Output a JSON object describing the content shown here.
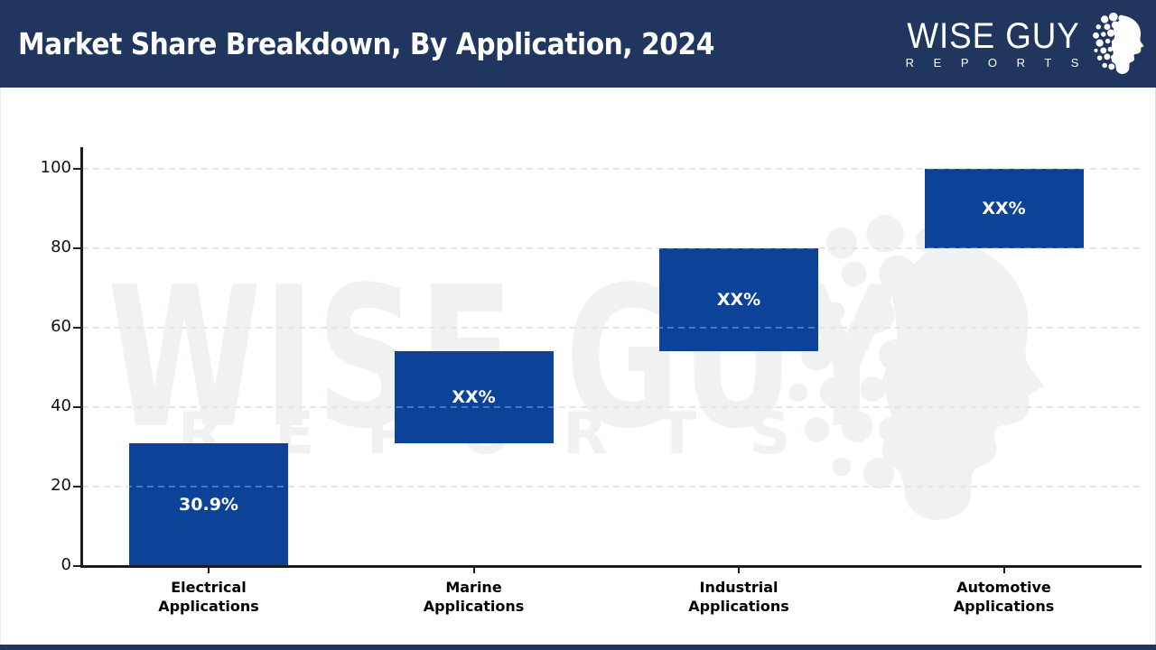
{
  "header": {
    "title": "Market Share Breakdown, By Application, 2024",
    "logo": {
      "brand": "WISE GUY",
      "brand_sub": "R E P O R T S"
    }
  },
  "watermark": {
    "brand": "WISE GUY",
    "brand_sub": "REPORTS"
  },
  "colors": {
    "header_bg": "#20365e",
    "footer_bg": "#20365e",
    "bar_fill": "#0c4399",
    "bar_label_text": "#ffffff",
    "title_text": "#ffffff",
    "axis_line": "#1c1c1c",
    "tick_label_text": "#111111",
    "gridline": "#dedede",
    "canvas_bg": "#ffffff",
    "watermark_tint": "#f0f1f3"
  },
  "chart_data": {
    "type": "bar",
    "subtype": "waterfall",
    "title": "Market Share Breakdown, By Application, 2024",
    "categories": [
      "Electrical Applications",
      "Marine Applications",
      "Industrial Applications",
      "Automotive Applications"
    ],
    "category_lines": [
      [
        "Electrical",
        "Applications"
      ],
      [
        "Marine",
        "Applications"
      ],
      [
        "Industrial",
        "Applications"
      ],
      [
        "Automotive",
        "Applications"
      ]
    ],
    "bars": [
      {
        "start": 0,
        "end": 30.9,
        "label": "30.9%"
      },
      {
        "start": 30.9,
        "end": 54.2,
        "label": "XX%"
      },
      {
        "start": 54.2,
        "end": 80.0,
        "label": "XX%"
      },
      {
        "start": 80.0,
        "end": 100,
        "label": "XX%"
      }
    ],
    "y_ticks": [
      0,
      20,
      40,
      60,
      80,
      100
    ],
    "ylim": [
      0,
      105
    ],
    "xlabel": "",
    "ylabel": "",
    "grid": "horizontal-dashed",
    "legend": "none",
    "bar_color": "#0c4399"
  }
}
